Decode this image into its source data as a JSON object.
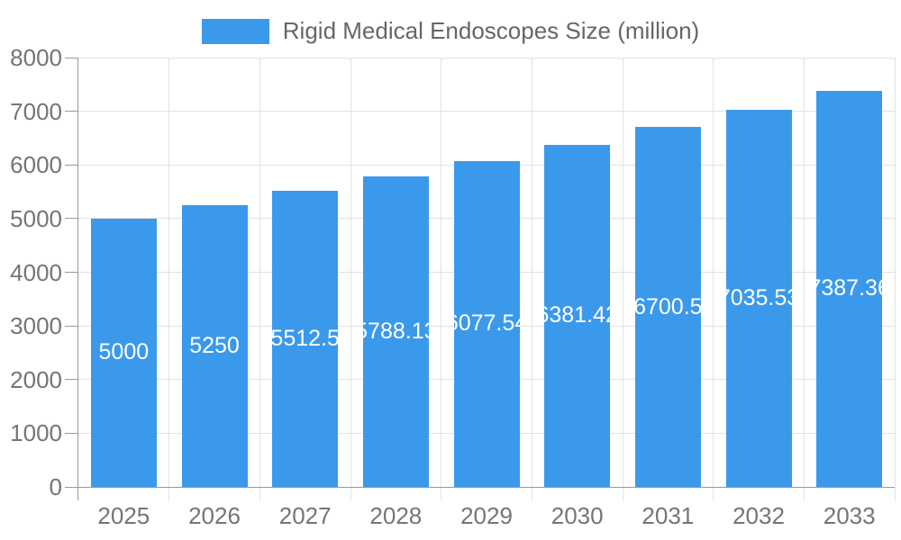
{
  "chart_data": {
    "type": "bar",
    "title": "",
    "legend": "Rigid Medical Endoscopes Size (million)",
    "legend_position": "top",
    "categories": [
      "2025",
      "2026",
      "2027",
      "2028",
      "2029",
      "2030",
      "2031",
      "2032",
      "2033"
    ],
    "values": [
      5000,
      5250,
      5512.5,
      5788.13,
      6077.54,
      6381.42,
      6700.5,
      7035.53,
      7387.36
    ],
    "series_name": "Rigid Medical Endoscopes Size (million)",
    "xlabel": "",
    "ylabel": "",
    "ylim": [
      0,
      8000
    ],
    "yticks": [
      0,
      1000,
      2000,
      3000,
      4000,
      5000,
      6000,
      7000,
      8000
    ],
    "grid": true,
    "bar_labels_inside": true,
    "colors": {
      "background": "#FFFFFF",
      "bar": "#3B99EC",
      "bar_label": "#FFFFFF",
      "axis_line": "#999999",
      "grid_line": "#E2E2E2",
      "axis_text": "#757575",
      "legend_text": "#666666"
    }
  }
}
